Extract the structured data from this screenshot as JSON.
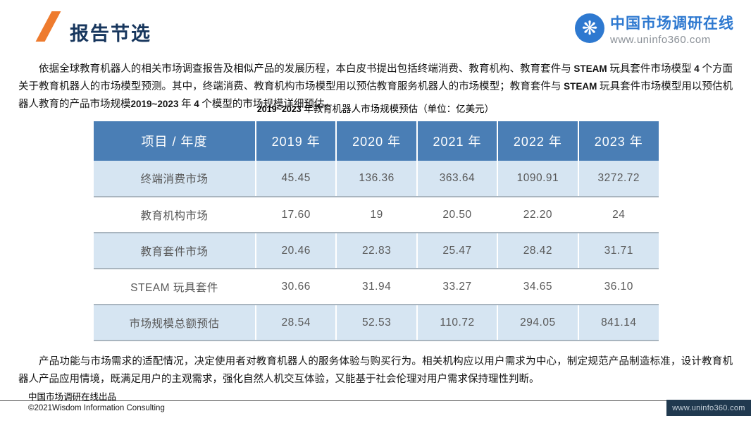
{
  "page": {
    "title": "报告节选"
  },
  "logo": {
    "name": "中国市场调研在线",
    "url": "www.uninfo360.com",
    "icon_glyph": "❋"
  },
  "intro": {
    "segments": [
      "依据全球教育机器人的相关市场调查报告及相似产品的发展历程，本白皮书提出包括终端消费、教育机构、教育套件与 ",
      "STEAM",
      " 玩具套件市场模型 ",
      "4",
      " 个方面关于教育机器人的市场模型预测。其中，终端消费、教育机构市场模型用以预估教育服务机器人的市场模型；教育套件与 ",
      "STEAM",
      " 玩具套件市场模型用以预估机器人教育的产品市场规模",
      "2019~2023",
      " 年 ",
      "4",
      " 个模型的市场规模详细预估。"
    ]
  },
  "table": {
    "caption": {
      "bold": "2019~2023",
      "rest": " 年教育机器人市场规模预估（单位：亿美元）"
    },
    "columns": [
      "项目 / 年度",
      "2019 年",
      "2020 年",
      "2021 年",
      "2022 年",
      "2023 年"
    ],
    "rows": [
      {
        "label": "终端消费市场",
        "values": [
          "45.45",
          "136.36",
          "363.64",
          "1090.91",
          "3272.72"
        ]
      },
      {
        "label": "教育机构市场",
        "values": [
          "17.60",
          "19",
          "20.50",
          "22.20",
          "24"
        ]
      },
      {
        "label": "教育套件市场",
        "values": [
          "20.46",
          "22.83",
          "25.47",
          "28.42",
          "31.71"
        ]
      },
      {
        "label": "STEAM 玩具套件",
        "values": [
          "30.66",
          "31.94",
          "33.27",
          "34.65",
          "36.10"
        ]
      },
      {
        "label": "市场规模总额预估",
        "values": [
          "28.54",
          "52.53",
          "110.72",
          "294.05",
          "841.14"
        ]
      }
    ]
  },
  "closing": {
    "text": "产品功能与市场需求的适配情况，决定使用者对教育机器人的服务体验与购买行为。相关机构应以用户需求为中心，制定规范产品制造标准，设计教育机器人产品应用情境，既满足用户的主观需求，强化自然人机交互体验，又能基于社会伦理对用户需求保持理性判断。"
  },
  "footer": {
    "producer": "中国市场调研在线出品",
    "copyright": "©2021Wisdom Information Consulting",
    "site": "www.uninfo360.com"
  },
  "colors": {
    "accent_orange": "#EE7B2E",
    "title_navy": "#17365D",
    "table_header_blue": "#4A7EB5",
    "table_row_blue": "#D6E5F2",
    "logo_blue": "#2E79D0",
    "footer_box_navy": "#20394F"
  }
}
